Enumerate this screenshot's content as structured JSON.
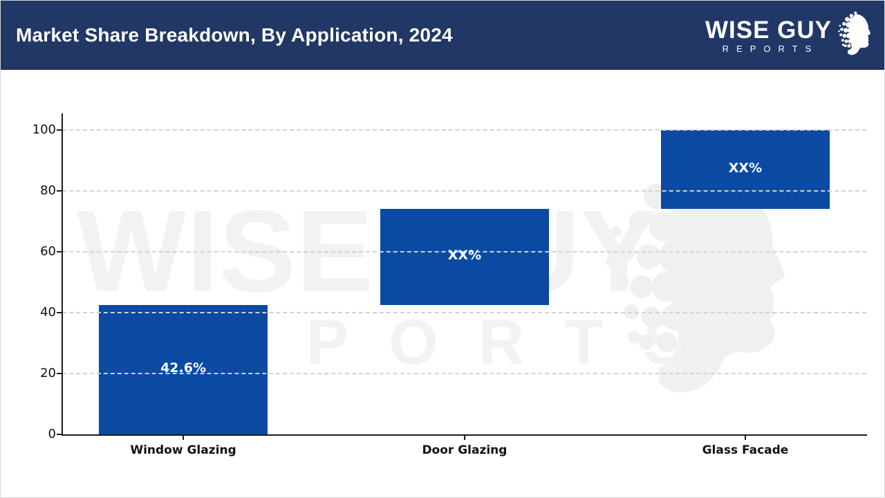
{
  "header": {
    "title": "Market Share Breakdown, By Application, 2024",
    "logo": {
      "line1": "WISE GUY",
      "line2": "REPORTS"
    }
  },
  "watermark": {
    "line1": "WISE GUY",
    "line2": "REPORTS"
  },
  "chart_data": {
    "type": "bar",
    "variant": "floating-waterfall",
    "title": "Market Share Breakdown, By Application, 2024",
    "categories": [
      "Window Glazing",
      "Door Glazing",
      "Glass Facade"
    ],
    "segments": [
      {
        "category": "Window Glazing",
        "start": 0,
        "end": 42.6,
        "label": "42.6%"
      },
      {
        "category": "Door Glazing",
        "start": 42.6,
        "end": 74.2,
        "label": "XX%"
      },
      {
        "category": "Glass Facade",
        "start": 74.2,
        "end": 100,
        "label": "XX%"
      }
    ],
    "yticks": [
      0,
      20,
      40,
      60,
      80,
      100
    ],
    "ylim": [
      0,
      105.5
    ],
    "xlabel": "",
    "ylabel": "",
    "grid": "horizontal-dashed-above-bars",
    "legend": "none",
    "bar_color": "#0a4aa3",
    "value_label_color": "#ffffff"
  },
  "colors": {
    "header_bg": "#213765",
    "bar": "#0a4aa3",
    "grid": "#d2d2d2",
    "axis": "#1a1a1a",
    "watermark": "#f2f2f2",
    "title_text": "#ffffff"
  }
}
